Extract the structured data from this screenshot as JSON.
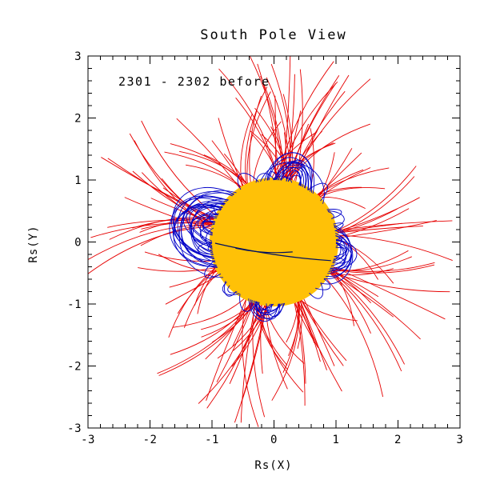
{
  "figure": {
    "background": "#FFFFFF",
    "axis_color": "#000000",
    "text_color": "#000000"
  },
  "chart_data": {
    "type": "line",
    "subtype": "solar-coronal-field-line-map",
    "title": "South Pole View",
    "annotation": "2301 - 2302 before",
    "xlabel": "Rs(X)",
    "ylabel": "Rs(Y)",
    "xlim": [
      -3,
      3
    ],
    "ylim": [
      -3,
      3
    ],
    "ticks": [
      -3,
      -2,
      -1,
      0,
      1,
      2,
      3
    ],
    "minor_tick_step": 0.2,
    "grid": false,
    "legend": null,
    "seed": 23012302,
    "sun": {
      "cx": 0,
      "cy": 0,
      "r": 1.04,
      "color": "#FFC107"
    },
    "open_field_lines": {
      "color": "#E60000",
      "width": 0.9,
      "max_drift_deg": 26,
      "clusters": [
        {
          "angle": 80,
          "spread": 16,
          "count": 32,
          "rmin": 1.7,
          "rmax": 3.1
        },
        {
          "angle": 118,
          "spread": 9,
          "count": 14,
          "rmin": 1.6,
          "rmax": 2.6
        },
        {
          "angle": 163,
          "spread": 11,
          "count": 20,
          "rmin": 1.9,
          "rmax": 3.2
        },
        {
          "angle": 205,
          "spread": 9,
          "count": 10,
          "rmin": 1.5,
          "rmax": 2.3
        },
        {
          "angle": 255,
          "spread": 15,
          "count": 28,
          "rmin": 1.8,
          "rmax": 3.0
        },
        {
          "angle": 293,
          "spread": 10,
          "count": 16,
          "rmin": 1.6,
          "rmax": 2.7
        },
        {
          "angle": 333,
          "spread": 10,
          "count": 16,
          "rmin": 1.8,
          "rmax": 3.1
        },
        {
          "angle": 8,
          "spread": 9,
          "count": 12,
          "rmin": 1.6,
          "rmax": 2.9
        },
        {
          "angle": 47,
          "spread": 9,
          "count": 10,
          "rmin": 1.5,
          "rmax": 2.3
        }
      ]
    },
    "closed_field_loops": {
      "color": "#0000C8",
      "width": 0.9,
      "clusters": [
        {
          "angle": 168,
          "jitter": 8,
          "count": 24,
          "sep_min": 14,
          "sep_max": 80,
          "apex_min": 1.1,
          "apex_max": 1.9
        },
        {
          "angle": 74,
          "jitter": 7,
          "count": 14,
          "sep_min": 10,
          "sep_max": 52,
          "apex_min": 1.05,
          "apex_max": 1.5
        },
        {
          "angle": 349,
          "jitter": 7,
          "count": 12,
          "sep_min": 10,
          "sep_max": 46,
          "apex_min": 1.05,
          "apex_max": 1.4
        },
        {
          "angle": 262,
          "jitter": 6,
          "count": 8,
          "sep_min": 8,
          "sep_max": 34,
          "apex_min": 1.04,
          "apex_max": 1.3
        },
        {
          "uniform": true,
          "count": 30,
          "sep_min": 6,
          "sep_max": 18,
          "apex_min": 1.02,
          "apex_max": 1.1
        }
      ]
    },
    "disk_chords": {
      "color": "#001060",
      "width": 1.2,
      "chords": [
        {
          "from": [
            -0.95,
            -0.02
          ],
          "via": [
            0.0,
            -0.24
          ],
          "to": [
            0.92,
            -0.3
          ]
        },
        {
          "from": [
            -0.62,
            -0.1
          ],
          "via": [
            -0.15,
            -0.2
          ],
          "to": [
            0.3,
            -0.16
          ]
        }
      ]
    }
  }
}
